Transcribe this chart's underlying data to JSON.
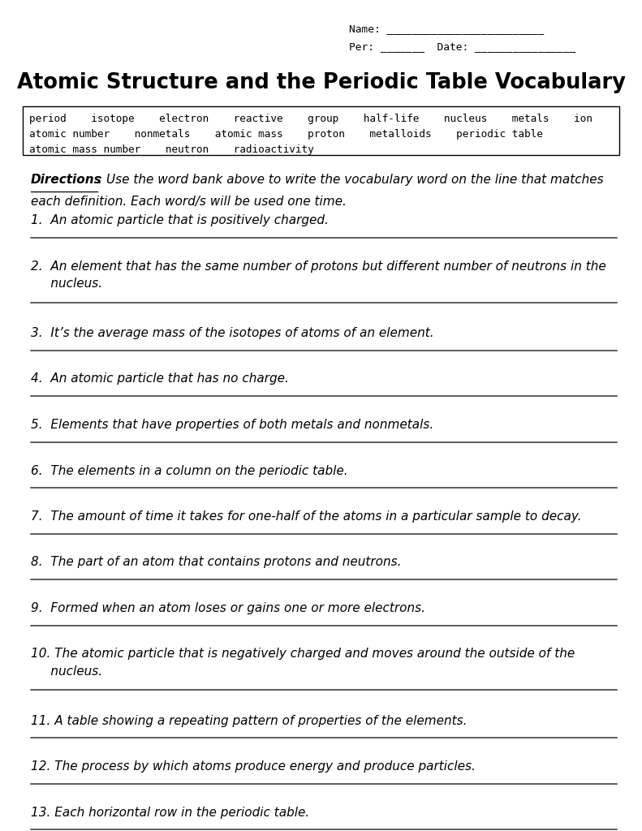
{
  "bg_color": "#ffffff",
  "title": "Atomic Structure and the Periodic Table Vocabulary",
  "name_line": "Name: _________________________",
  "per_line": "Per: _______  Date: ________________",
  "word_bank_rows": [
    "period    isotope    electron    reactive    group    half-life    nucleus    metals    ion",
    "atomic number    nonmetals    atomic mass    proton    metalloids    periodic table",
    "atomic mass number    neutron    radioactivity"
  ],
  "directions_bold": "Directions",
  "directions_rest_line1": ": Use the word bank above to write the vocabulary word on the line that matches",
  "directions_rest_line2": "each definition. Each word/s will be used one time.",
  "questions": [
    "1.  An atomic particle that is positively charged.",
    "2.  An element that has the same number of protons but different number of neutrons in the\n     nucleus.",
    "3.  It’s the average mass of the isotopes of atoms of an element.",
    "4.  An atomic particle that has no charge.",
    "5.  Elements that have properties of both metals and nonmetals.",
    "6.  The elements in a column on the periodic table.",
    "7.  The amount of time it takes for one-half of the atoms in a particular sample to decay.",
    "8.  The part of an atom that contains protons and neutrons.",
    "9.  Formed when an atom loses or gains one or more electrons.",
    "10. The atomic particle that is negatively charged and moves around the outside of the\n     nucleus.",
    "11. A table showing a repeating pattern of properties of the elements.",
    "12. The process by which atoms produce energy and produce particles.",
    "13. Each horizontal row in the periodic table."
  ],
  "q_two_lines": [
    false,
    true,
    false,
    false,
    false,
    false,
    false,
    false,
    false,
    true,
    false,
    false,
    false
  ],
  "title_fontsize": 18.5,
  "body_fontsize": 11,
  "small_fontsize": 9.2
}
